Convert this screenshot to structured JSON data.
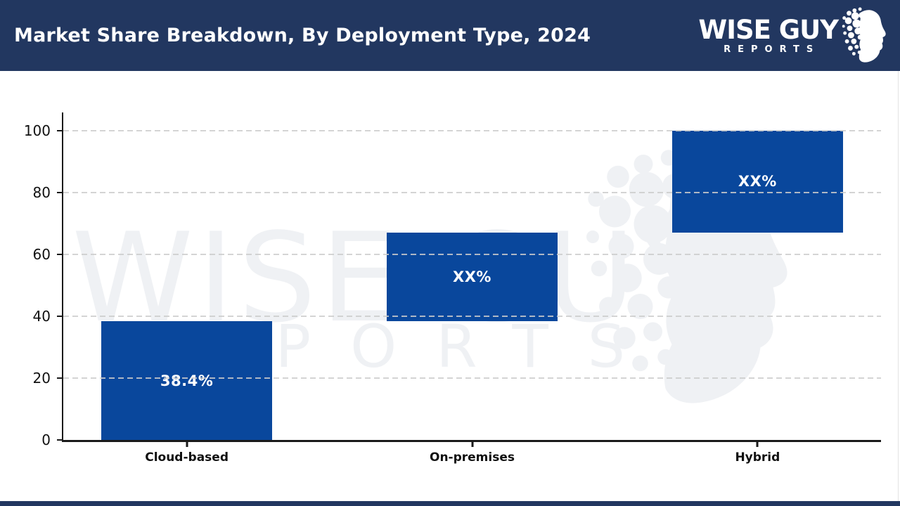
{
  "header": {
    "title": "Market Share Breakdown, By Deployment Type, 2024"
  },
  "logo": {
    "line1": "WISE GUY",
    "line2": "REPORTS"
  },
  "watermark": {
    "line1": "WISE GUY",
    "line2": "REPORTS"
  },
  "colors": {
    "header_bg": "#223760",
    "footer_bg": "#223760",
    "bar": "#09479c",
    "grid": "#d2d2d2",
    "axis": "#1a1a1a",
    "bar_label_text": "#ffffff",
    "watermark": "#eff1f4"
  },
  "chart_data": {
    "type": "bar",
    "subtype": "floating-waterfall",
    "title": "Market Share Breakdown, By Deployment Type, 2024",
    "categories": [
      "Cloud-based",
      "On-premises",
      "Hybrid"
    ],
    "bars": [
      {
        "category": "Cloud-based",
        "start": 0,
        "end": 38.4,
        "label": "38.4%"
      },
      {
        "category": "On-premises",
        "start": 38.4,
        "end": 67.2,
        "label": "XX%"
      },
      {
        "category": "Hybrid",
        "start": 67.2,
        "end": 100,
        "label": "XX%"
      }
    ],
    "xlabel": "",
    "ylabel": "",
    "yticks": [
      0,
      20,
      40,
      60,
      80,
      100
    ],
    "ylim": [
      0,
      106
    ],
    "grid": "horizontal-dashed",
    "legend": false
  }
}
